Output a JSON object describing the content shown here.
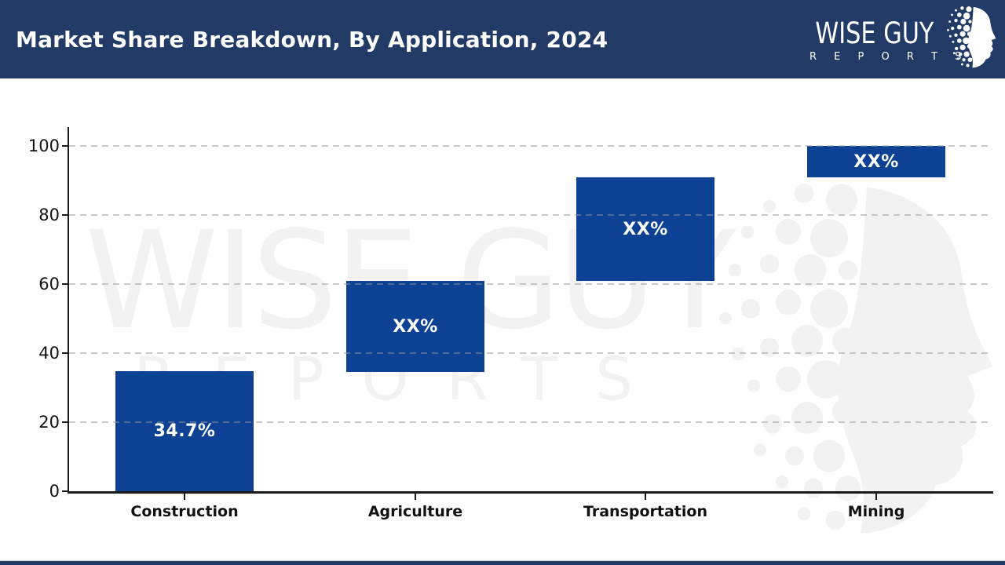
{
  "header": {
    "title": "Market Share Breakdown, By Application, 2024",
    "logo": {
      "line1": "WISE GUY",
      "line2": "R E P O R T S"
    }
  },
  "watermark": {
    "line1": "WISE GUY",
    "line2": "REPORTS"
  },
  "colors": {
    "header_bg": "#213a66",
    "bar": "#0c4194",
    "bar_label": "#ffffff",
    "axis": "#1a1a1a",
    "gridline": "rgba(150,150,150,0.5)",
    "watermark": "#f2f2f2"
  },
  "chart_data": {
    "type": "bar",
    "subtype": "waterfall",
    "title": "Market Share Breakdown, By Application, 2024",
    "xlabel": "",
    "ylabel": "",
    "categories": [
      "Construction",
      "Agriculture",
      "Transportation",
      "Mining"
    ],
    "segments": [
      {
        "category": "Construction",
        "start": 0,
        "end": 34.7,
        "label": "34.7%"
      },
      {
        "category": "Agriculture",
        "start": 34.7,
        "end": 61,
        "label": "XX%"
      },
      {
        "category": "Transportation",
        "start": 61,
        "end": 91,
        "label": "XX%"
      },
      {
        "category": "Mining",
        "start": 91,
        "end": 100,
        "label": "XX%"
      }
    ],
    "ylim": [
      0,
      100
    ],
    "yticks": [
      0,
      20,
      40,
      60,
      80,
      100
    ],
    "grid": "horizontal-dashed",
    "legend": "none"
  }
}
